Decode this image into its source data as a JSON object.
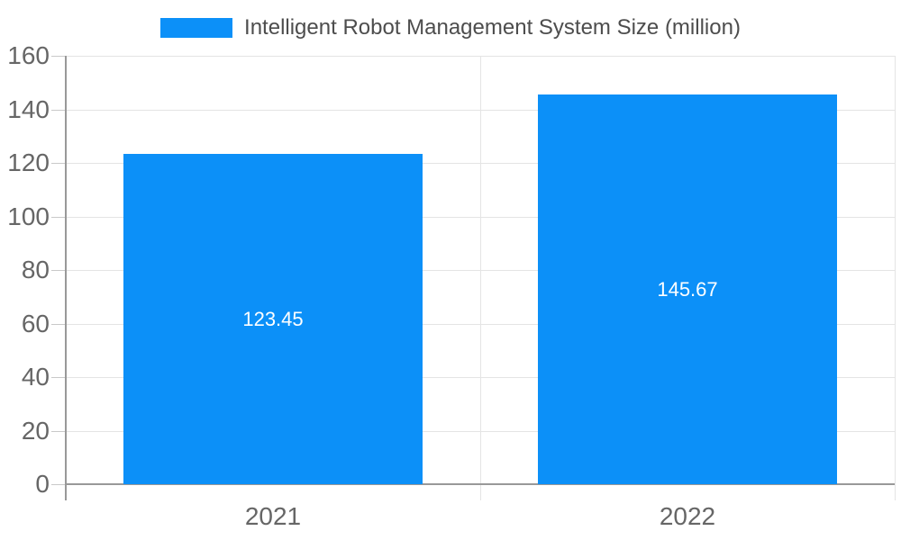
{
  "chart_data": {
    "type": "bar",
    "legend": "Intelligent Robot Management System Size (million)",
    "categories": [
      "2021",
      "2022"
    ],
    "values": [
      123.45,
      145.67
    ],
    "value_labels": [
      "123.45",
      "145.67"
    ],
    "ylim": [
      0,
      160
    ],
    "yticks": [
      0,
      20,
      40,
      60,
      80,
      100,
      120,
      140,
      160
    ],
    "grid": true,
    "legend_position": "top",
    "bar_color": "#0c90f8",
    "bar_label_color": "#ffffff",
    "axis_text_color": "#666666",
    "legend_text_color": "#4d4d4d"
  }
}
